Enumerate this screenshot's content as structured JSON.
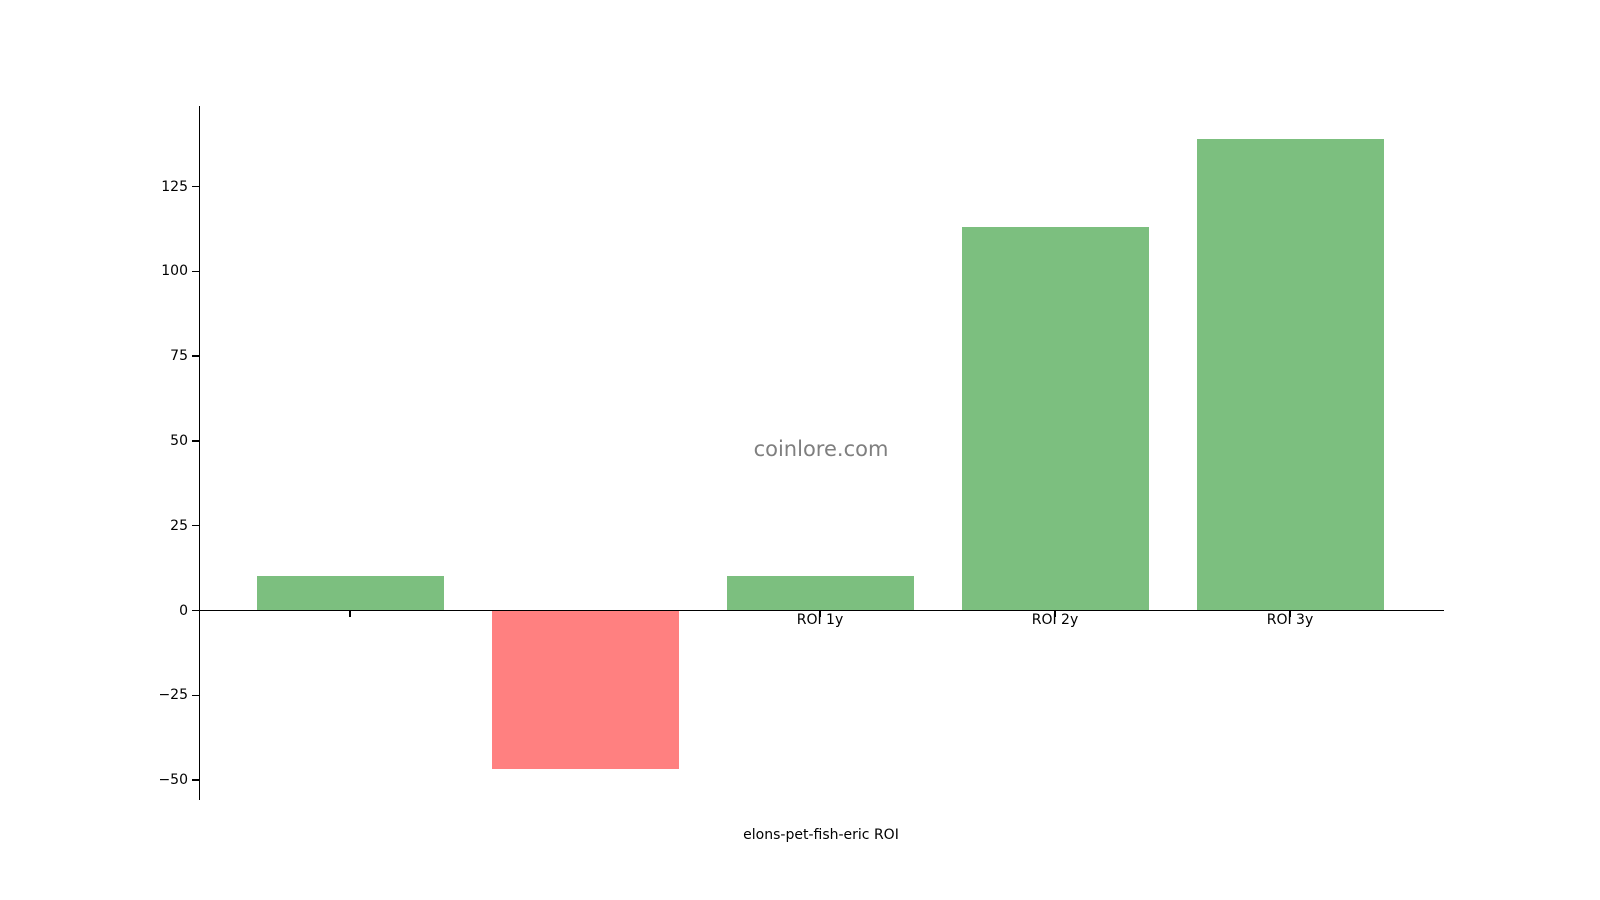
{
  "watermark": {
    "text": "coinlore.com",
    "color": "#7f7f7f"
  },
  "chart_data": {
    "type": "bar",
    "title": "",
    "xlabel": "elons-pet-fish-eric ROI",
    "ylabel": "",
    "categories": [
      "",
      "",
      "ROI 1y",
      "ROI 2y",
      "ROI 3y"
    ],
    "values": [
      10.2,
      -46.7,
      10.2,
      113.1,
      139.0
    ],
    "positive_color": "#7cbf7f",
    "negative_color": "#ff8080",
    "axis_color": "#000000",
    "y_ticks": [
      125,
      100,
      75,
      50,
      25,
      0,
      -25,
      -50
    ],
    "ylim": [
      -56,
      148.7
    ],
    "grid": false,
    "legend": "none",
    "zero_line": true
  }
}
